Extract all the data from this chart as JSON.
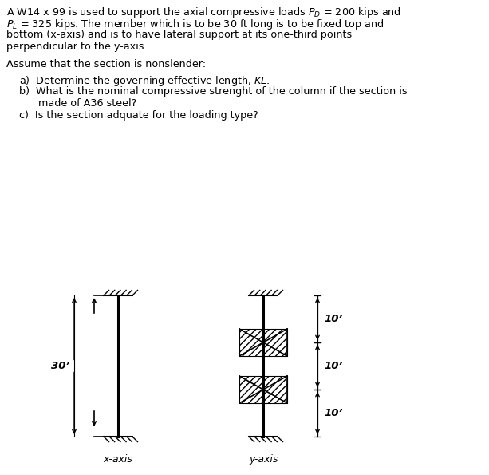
{
  "bg_color": "#ffffff",
  "text_color": "#000000",
  "line_color": "#000000",
  "label_30": "30’",
  "label_10": "10’",
  "label_xaxis": "x-axis",
  "label_yaxis": "y-axis",
  "text_line1": "A W14 x 99 is used to support the axial compressive loads $P_D$ = 200 kips and",
  "text_line2": "$P_L$ = 325 kips. The member which is to be 30 ft long is to be fixed top and",
  "text_line3": "bottom (x-axis) and is to have lateral support at its one-third points",
  "text_line4": "perpendicular to the y-axis.",
  "text_assume": "Assume that the section is nonslender:",
  "text_a": "a)  Determine the governing effective length, $KL$.",
  "text_b1": "b)  What is the nominal compressive strenght of the column if the section is",
  "text_b2": "      made of A36 steel?",
  "text_c": "c)  Is the section adquate for the loading type?"
}
